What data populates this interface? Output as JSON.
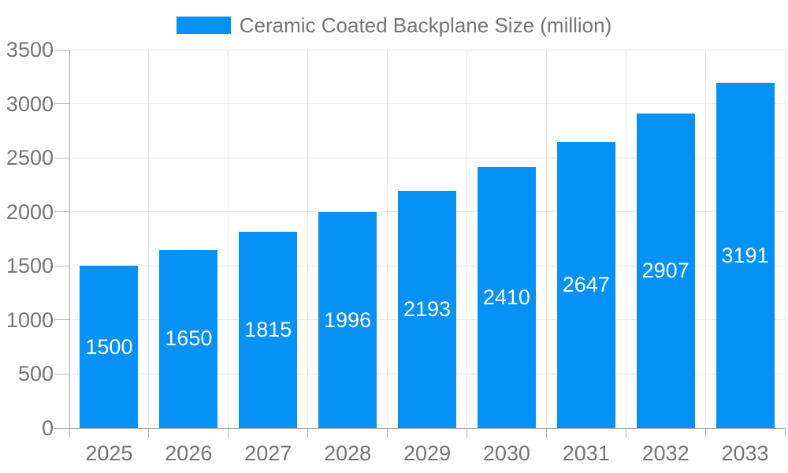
{
  "chart_data": {
    "type": "bar",
    "title": "Ceramic Coated Backplane Size (million)",
    "categories": [
      "2025",
      "2026",
      "2027",
      "2028",
      "2029",
      "2030",
      "2031",
      "2032",
      "2033"
    ],
    "values": [
      1500,
      1650,
      1815,
      1996,
      2193,
      2410,
      2647,
      2907,
      3191
    ],
    "xlabel": "",
    "ylabel": "",
    "ylim": [
      0,
      3500
    ],
    "yticks": [
      0,
      500,
      1000,
      1500,
      2000,
      2500,
      3000,
      3500
    ],
    "grid": true,
    "legend_position": "top-center",
    "value_labels": "inside-center",
    "colors": {
      "bar": "#0591f5",
      "value_label": "#ffffff",
      "axis_label": "#757575",
      "grid_line": "#e8e8e8",
      "axis_line": "#a6a6a6"
    }
  }
}
